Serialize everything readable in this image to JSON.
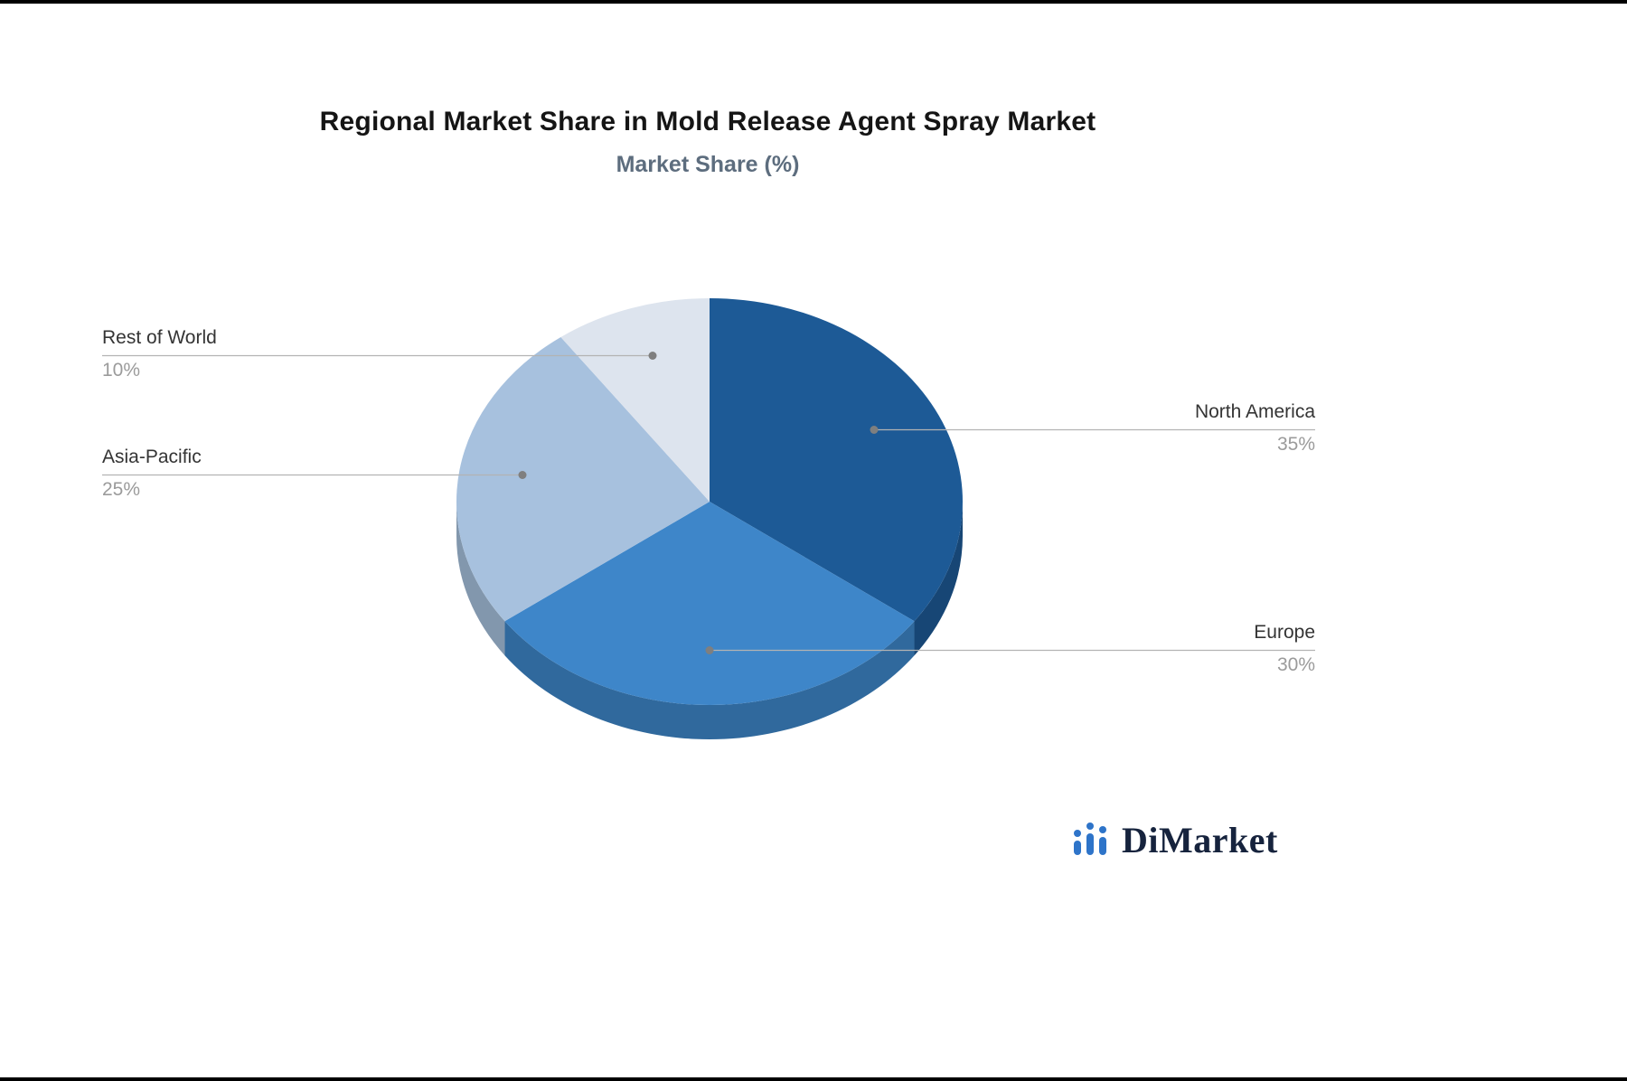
{
  "header": {
    "title": "Regional Market Share in Mold Release Agent Spray Market",
    "subtitle": "Market Share (%)"
  },
  "logo": {
    "text": "DiMarket"
  },
  "chart_data": {
    "type": "pie",
    "style": "3d",
    "title": "Regional Market Share in Mold Release Agent Spray Market",
    "subtitle": "Market Share (%)",
    "unit": "%",
    "start_angle_deg": 0,
    "direction": "clockwise",
    "legend": "none",
    "labels": [
      "North America",
      "Europe",
      "Asia-Pacific",
      "Rest of World"
    ],
    "values": [
      35,
      30,
      25,
      10
    ],
    "slices": [
      {
        "label": "North America",
        "value": 35,
        "pct_label": "35%",
        "color": "#1d5a96"
      },
      {
        "label": "Europe",
        "value": 30,
        "pct_label": "30%",
        "color": "#3e86c9"
      },
      {
        "label": "Asia-Pacific",
        "value": 25,
        "pct_label": "25%",
        "color": "#a7c1de"
      },
      {
        "label": "Rest of World",
        "value": 10,
        "pct_label": "10%",
        "color": "#dde4ee"
      }
    ]
  }
}
